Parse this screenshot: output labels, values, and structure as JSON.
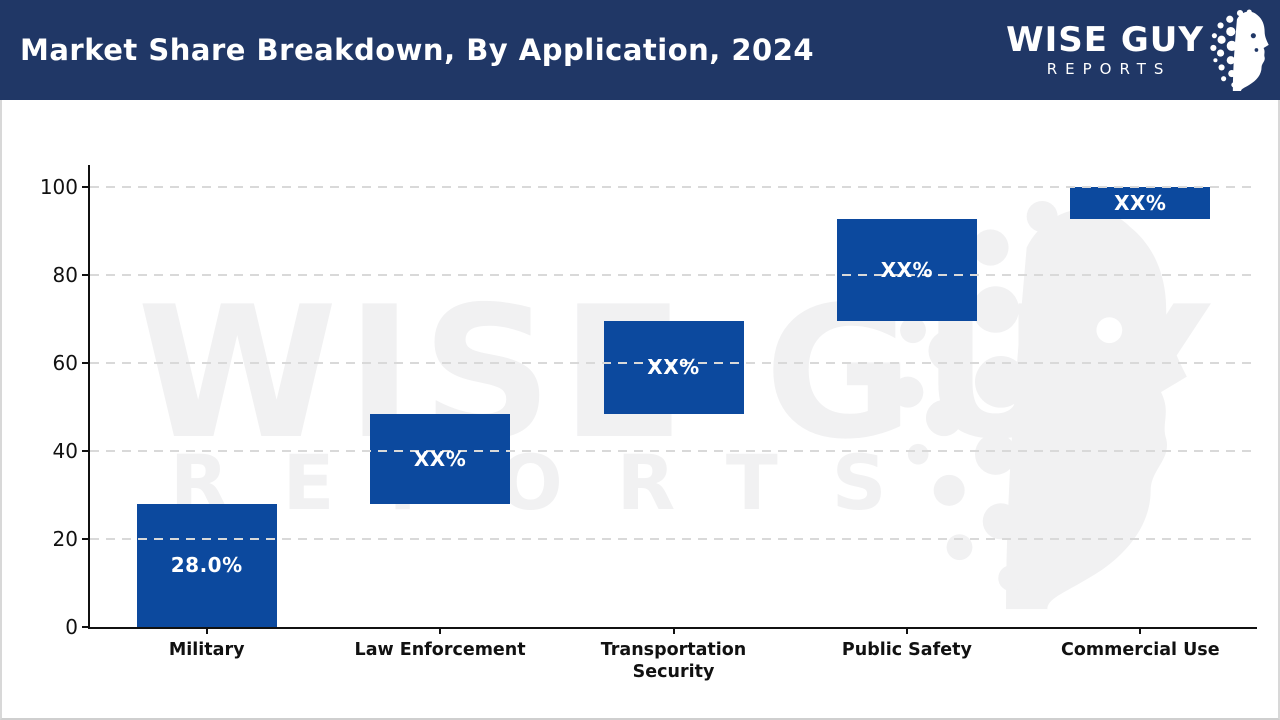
{
  "header": {
    "title": "Market Share Breakdown, By Application, 2024",
    "bg_color": "#203766",
    "text_color": "#ffffff",
    "logo": {
      "line1": "WISE GUY",
      "line2": "REPORTS"
    }
  },
  "watermark": {
    "line1": "WISE GUY",
    "line2": "REPORTS"
  },
  "chart_data": {
    "type": "bar",
    "subtype": "waterfall",
    "title": "Market Share Breakdown, By Application, 2024",
    "categories": [
      "Military",
      "Law Enforcement",
      "Transportation Security",
      "Public Safety",
      "Commercial Use"
    ],
    "segments": [
      {
        "category": "Military",
        "start": 0,
        "end": 28,
        "label": "28.0%"
      },
      {
        "category": "Law Enforcement",
        "start": 28,
        "end": 48.5,
        "label": "XX%"
      },
      {
        "category": "Transportation Security",
        "start": 48.5,
        "end": 69.5,
        "label": "XX%"
      },
      {
        "category": "Public Safety",
        "start": 69.5,
        "end": 92.7,
        "label": "XX%"
      },
      {
        "category": "Commercial Use",
        "start": 92.7,
        "end": 100,
        "label": "XX%"
      }
    ],
    "xlabel": "",
    "ylabel": "",
    "y_ticks": [
      0,
      20,
      40,
      60,
      80,
      100
    ],
    "ylim": [
      0,
      105
    ],
    "grid": "horizontal-dashed",
    "legend": null,
    "bar_color": "#0c499e",
    "bar_label_color": "#ffffff",
    "axis_color": "#111111",
    "gridline_color": "#d9d9d9"
  }
}
